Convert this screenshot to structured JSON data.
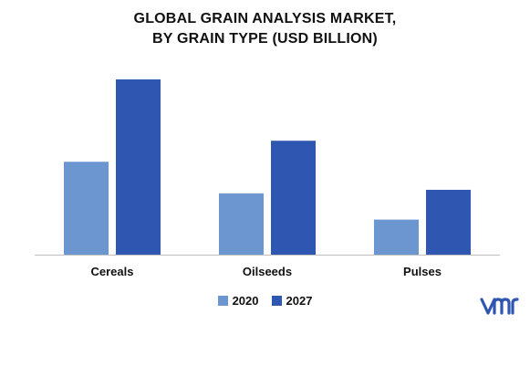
{
  "chart_data": {
    "type": "bar",
    "title_lines": [
      "GLOBAL GRAIN ANALYSIS MARKET,",
      "BY GRAIN TYPE (USD BILLION)"
    ],
    "categories": [
      "Cereals",
      "Oilseeds",
      "Pulses"
    ],
    "series": [
      {
        "name": "2020",
        "values": [
          53,
          35,
          20
        ],
        "color": "#6b96cf"
      },
      {
        "name": "2027",
        "values": [
          100,
          65,
          37
        ],
        "color": "#2f56b0"
      }
    ],
    "xlabel": "",
    "ylabel": "",
    "ylim": [
      0,
      100
    ],
    "grid": false,
    "legend_position": "bottom-center"
  },
  "brand": {
    "logo": "vmr-logo",
    "logo_color": "#2f56b0"
  }
}
